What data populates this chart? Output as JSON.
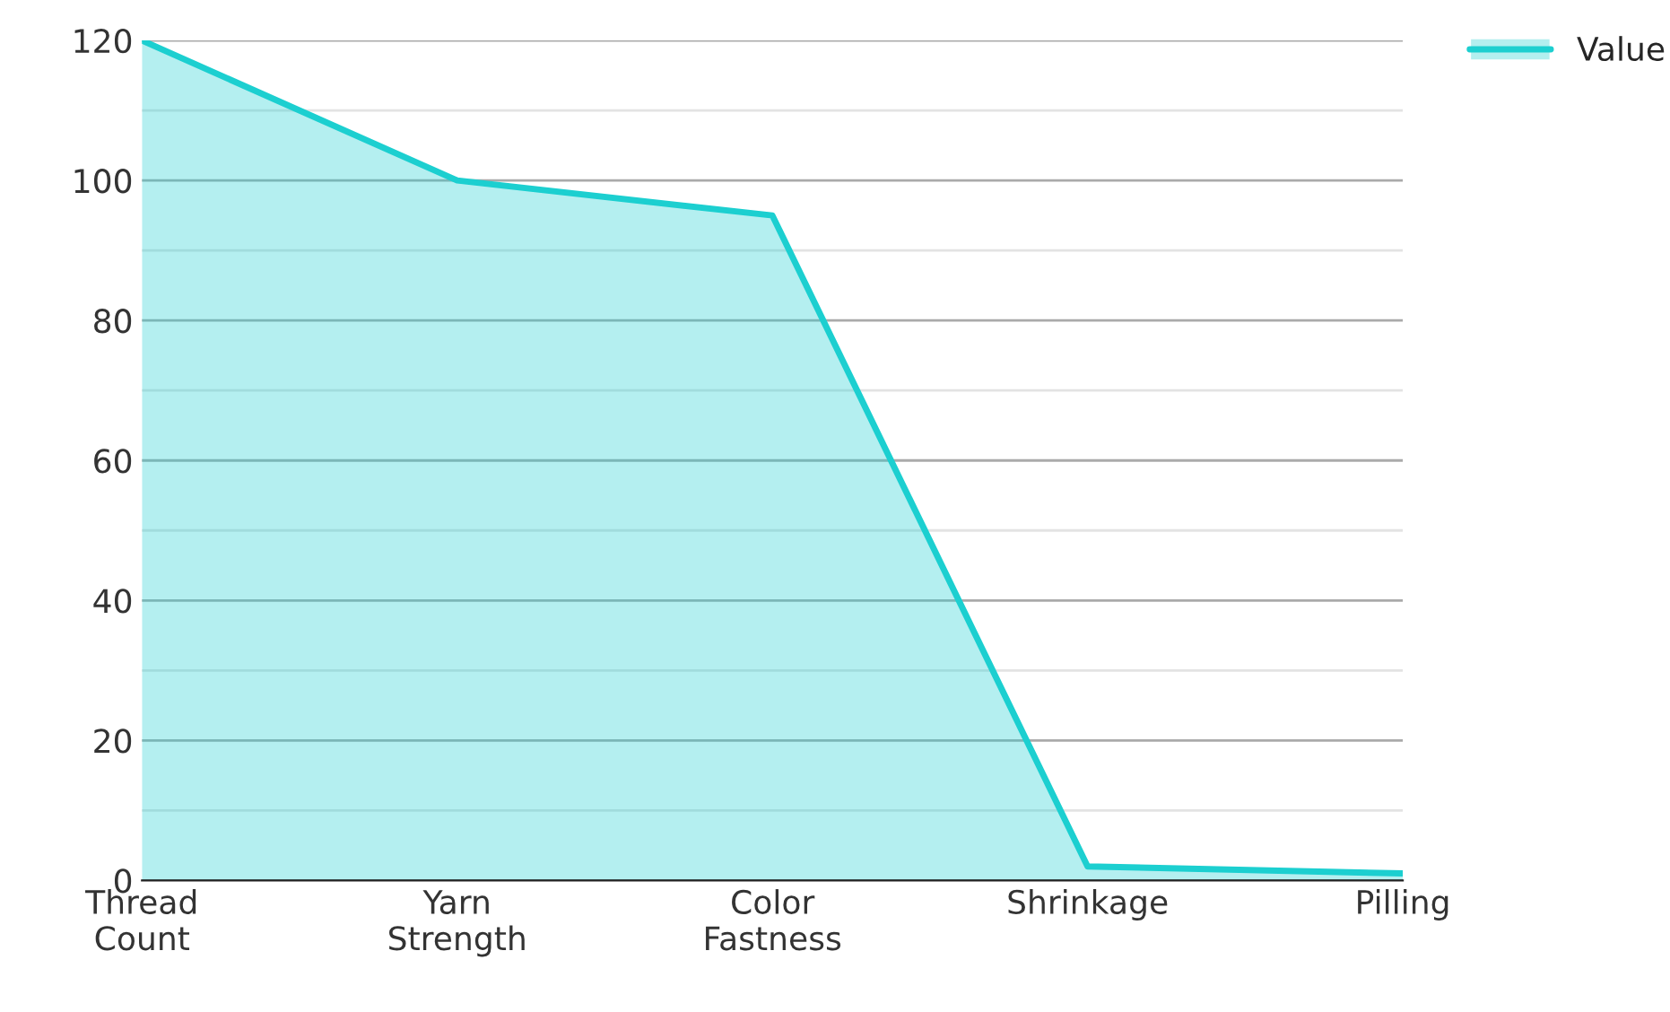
{
  "chart_data": {
    "type": "area",
    "categories": [
      "Thread\nCount",
      "Yarn\nStrength",
      "Color\nFastness",
      "Shrinkage",
      "Pilling"
    ],
    "series": [
      {
        "name": "Value",
        "color": "#1ccfd0",
        "values": [
          120,
          100,
          95,
          2,
          1
        ]
      }
    ],
    "ylim": [
      0,
      120
    ],
    "yticks": [
      0,
      {
        "value": 10,
        "label": null
      },
      20,
      {
        "value": 30,
        "label": null
      },
      40,
      {
        "value": 50,
        "label": null
      },
      60,
      {
        "value": 70,
        "label": null
      },
      80,
      {
        "value": 90,
        "label": null
      },
      100,
      {
        "value": 110,
        "label": null
      },
      120
    ],
    "grid": "y",
    "legend": "top right"
  }
}
